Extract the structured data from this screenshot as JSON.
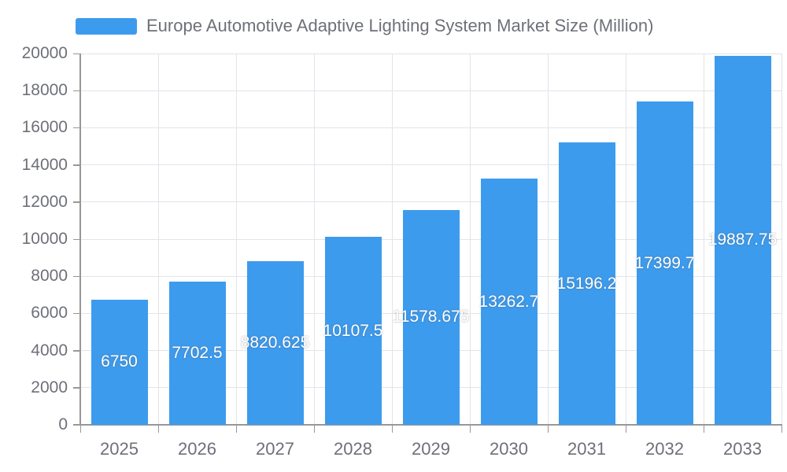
{
  "legend": {
    "label": "Europe Automotive Adaptive Lighting System Market Size (Million)",
    "swatch_color": "#3D9BEE"
  },
  "chart_data": {
    "type": "bar",
    "title": "Europe Automotive Adaptive Lighting System Market Size (Million)",
    "categories": [
      "2025",
      "2026",
      "2027",
      "2028",
      "2029",
      "2030",
      "2031",
      "2032",
      "2033"
    ],
    "values": [
      6750,
      7702.5,
      8820.625,
      10107.5,
      11578.675,
      13262.7,
      15196.2,
      17399.7,
      19887.75
    ],
    "bar_labels": [
      "6750",
      "7702.5",
      "8820.625",
      "10107.5",
      "11578.675",
      "13262.7",
      "15196.2",
      "17399.7",
      "19887.75"
    ],
    "xlabel": "",
    "ylabel": "",
    "ylim": [
      0,
      20000
    ],
    "ytick_step": 2000,
    "yticks": [
      "0",
      "2000",
      "4000",
      "6000",
      "8000",
      "10000",
      "12000",
      "14000",
      "16000",
      "18000",
      "20000"
    ],
    "grid": true,
    "legend_position": "top",
    "bar_color": "#3D9BEE",
    "bar_label_color": "#ffffff",
    "axis_text_color": "#6E7079",
    "grid_color": "#E2E4EA",
    "axis_line_color": "#979797"
  }
}
